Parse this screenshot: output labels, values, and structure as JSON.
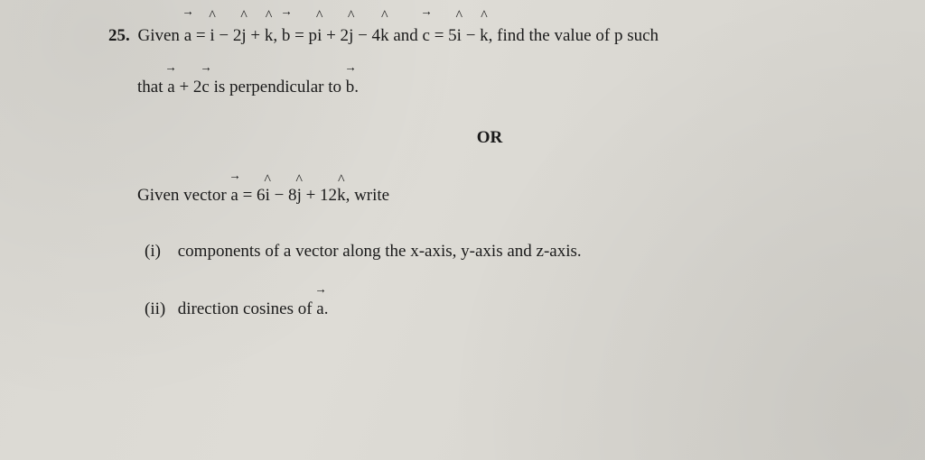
{
  "question": {
    "number": "25.",
    "line1_parts": {
      "p1": "Given ",
      "a": "a",
      "p2": " = ",
      "i1": "i",
      "p3": " − 2",
      "j1": "j",
      "p4": " + ",
      "k1": "k",
      "p5": ", ",
      "b": "b",
      "p6": " = p",
      "i2": "i",
      "p7": " + 2",
      "j2": "j",
      "p8": " − 4",
      "k2": "k",
      "p9": " and ",
      "c": "c",
      "p10": " = 5",
      "i3": "i",
      "p11": " − ",
      "k3": "k",
      "p12": ", find the value of p such"
    },
    "line2_parts": {
      "p1": "that ",
      "a": "a",
      "p2": " + 2",
      "c": "c",
      "p3": " is perpendicular to ",
      "b": "b",
      "p4": "."
    },
    "or_label": "OR",
    "given_line_parts": {
      "p1": "Given vector ",
      "a": "a",
      "p2": " = 6",
      "i": "i",
      "p3": " − 8",
      "j": "j",
      "p4": " + 12",
      "k": "k",
      "p5": ", write"
    },
    "sub_i": {
      "marker": "(i)",
      "text": "components of a vector along the x-axis, y-axis and z-axis."
    },
    "sub_ii": {
      "marker": "(ii)",
      "text_parts": {
        "p1": "direction cosines of ",
        "a": "a",
        "p2": "."
      }
    }
  }
}
